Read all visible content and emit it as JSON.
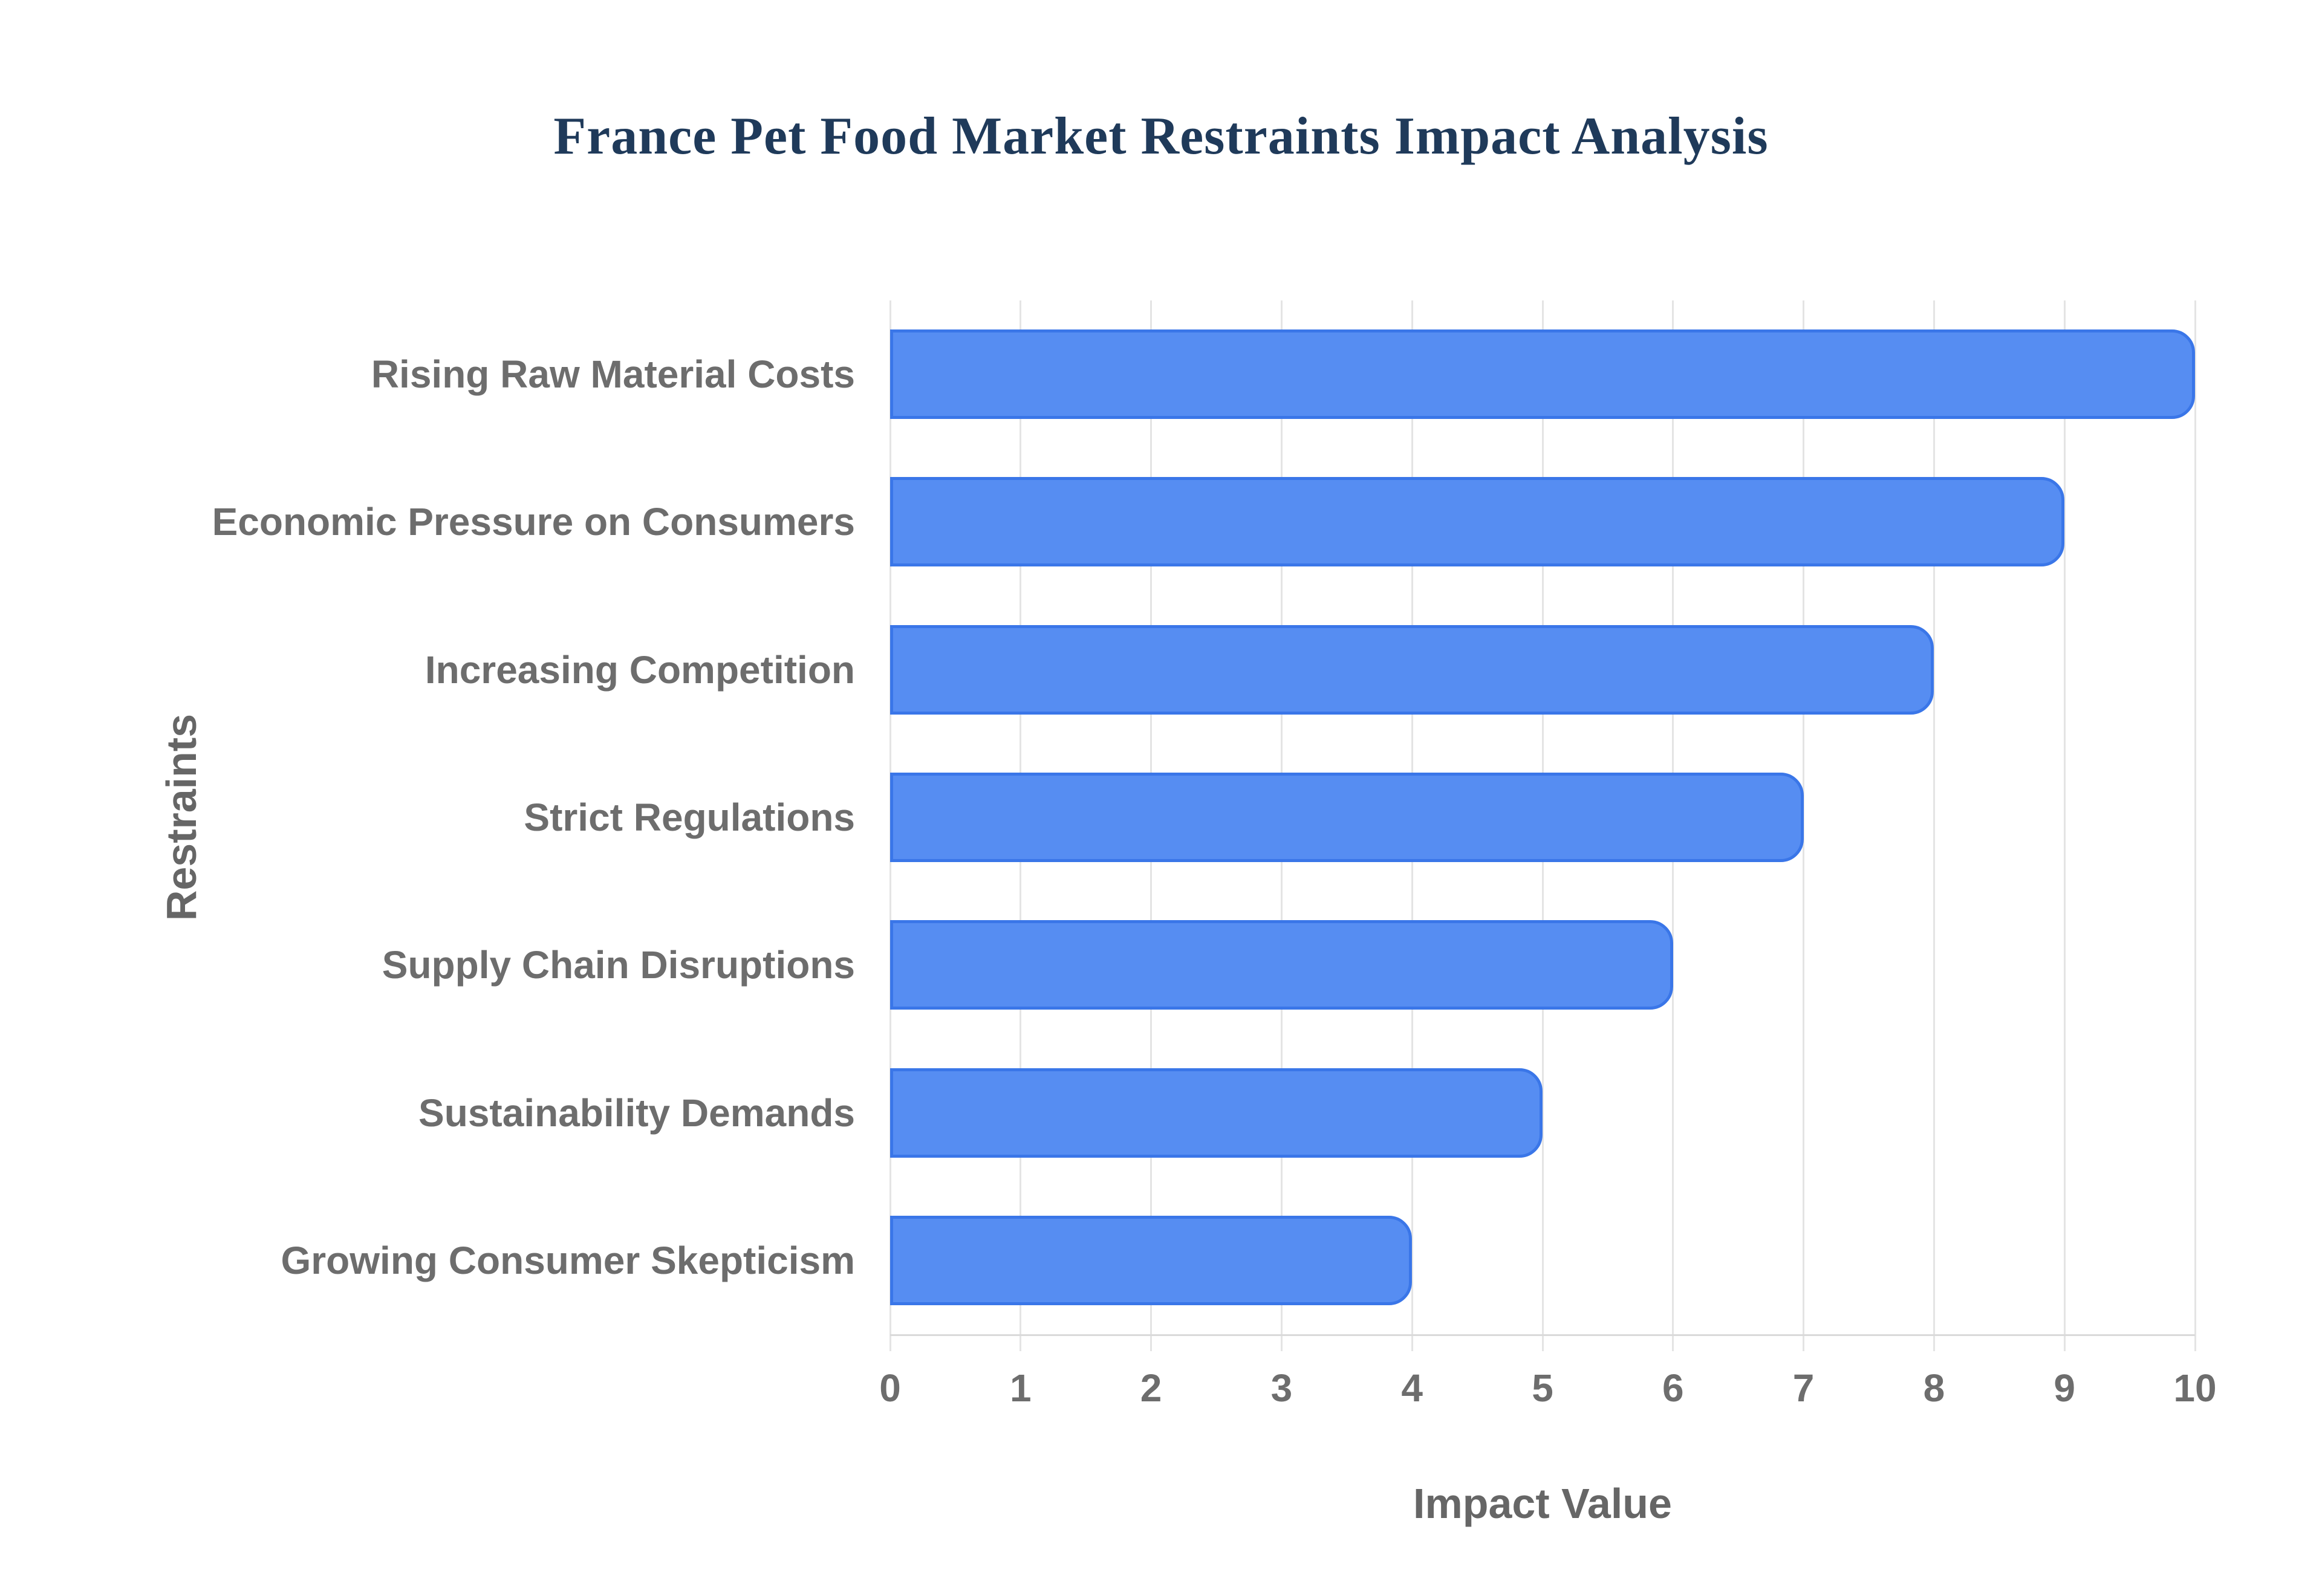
{
  "chart_data": {
    "type": "bar",
    "orientation": "horizontal",
    "title": "France Pet Food Market Restraints Impact Analysis",
    "categories": [
      "Rising Raw Material Costs",
      "Economic Pressure on Consumers",
      "Increasing Competition",
      "Strict Regulations",
      "Supply Chain Disruptions",
      "Sustainability Demands",
      "Growing Consumer Skepticism"
    ],
    "values": [
      10,
      9,
      8,
      7,
      6,
      5,
      4
    ],
    "xlabel": "Impact Value",
    "ylabel": "Restraints",
    "xlim": [
      0,
      10
    ],
    "xticks": [
      0,
      1,
      2,
      3,
      4,
      5,
      6,
      7,
      8,
      9,
      10
    ],
    "grid": "vertical-gridlines-on",
    "legend": "none",
    "colors": {
      "bar_fill": "#568DF2",
      "bar_border": "#3A76E8",
      "grid_line": "#E4E4E4",
      "axis_line": "#DADADA",
      "tick_text": "#6D6D6D",
      "category_text": "#6D6D6D",
      "axis_title_text": "#666666",
      "title_text": "#1F3A5A",
      "background": "#FFFFFF"
    }
  }
}
